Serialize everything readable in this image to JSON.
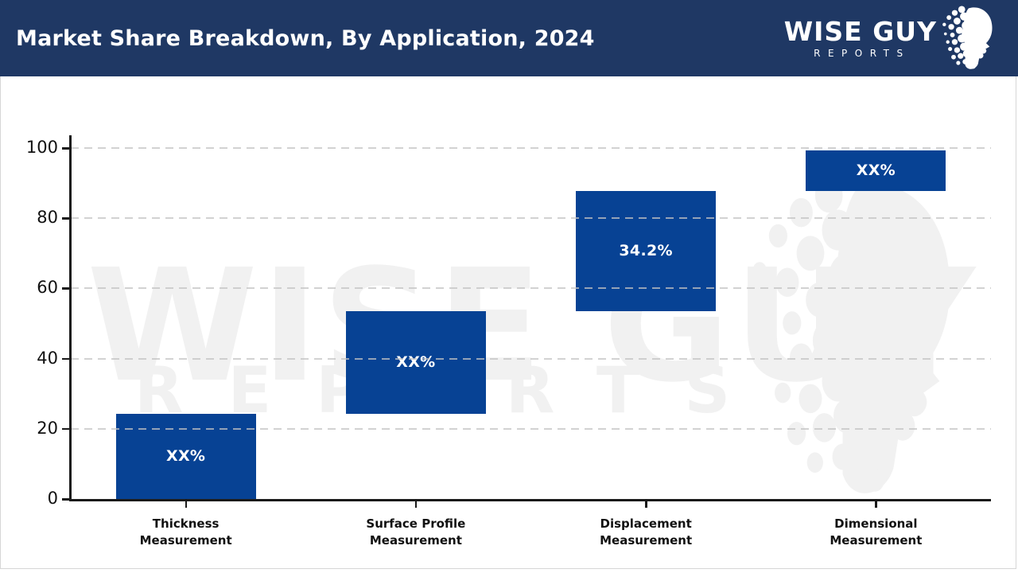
{
  "header": {
    "title": "Market Share Breakdown, By Application, 2024",
    "brand": {
      "name": "WISE GUY",
      "subname": "REPORTS"
    }
  },
  "watermark": {
    "brand": "WISE GUY",
    "subbrand": "REPORTS"
  },
  "chart_data": {
    "type": "bar",
    "variant": "stacked-waterfall",
    "title": "Market Share Breakdown, By Application, 2024",
    "categories": [
      "Thickness Measurement",
      "Surface Profile Measurement",
      "Displacement Measurement",
      "Dimensional Measurement"
    ],
    "segments": [
      {
        "category": "Thickness Measurement",
        "start": 0,
        "end": 24.3,
        "label": "XX%"
      },
      {
        "category": "Surface Profile Measurement",
        "start": 24.3,
        "end": 53.6,
        "label": "XX%"
      },
      {
        "category": "Displacement Measurement",
        "start": 53.6,
        "end": 87.8,
        "label": "34.2%"
      },
      {
        "category": "Dimensional Measurement",
        "start": 87.8,
        "end": 99.4,
        "label": "XX%"
      }
    ],
    "values_labels": [
      "XX%",
      "XX%",
      "34.2%",
      "XX%"
    ],
    "ylim": [
      0,
      100
    ],
    "yticks": [
      0,
      20,
      40,
      60,
      80,
      100
    ],
    "grid": "horizontal-dashed",
    "legend": "none",
    "bar_color": "#074294"
  },
  "colors": {
    "header_bg": "#1f3864",
    "bar": "#074294",
    "axis": "#1a1a1a",
    "grid": "#d9d9d9",
    "watermark": "#f1f1f1"
  }
}
